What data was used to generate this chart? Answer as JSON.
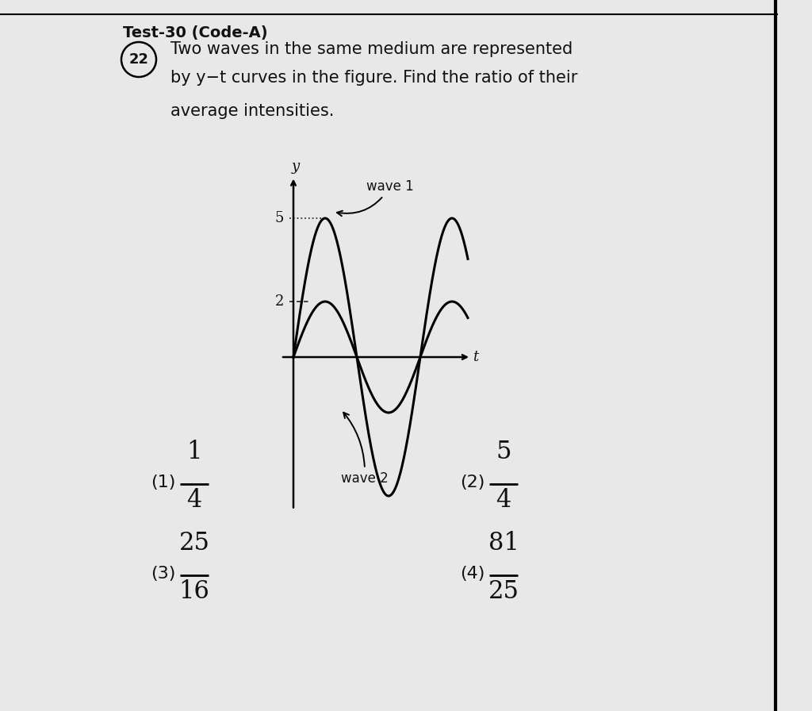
{
  "title": "Test-30 (Code-A)",
  "question_num": "22",
  "question_text_line1": "Two waves in the same medium are represented",
  "question_text_line2": "by y−t curves in the figure. Find the ratio of their",
  "question_text_line3": "average intensities.",
  "wave1_amplitude": 5,
  "wave2_amplitude": 2,
  "wave_period": 4.0,
  "axis_xlabel": "t",
  "axis_ylabel": "y",
  "label_wave1": "wave 1",
  "label_wave2": "wave 2",
  "y_tick_5": "5",
  "y_tick_2": "2",
  "options": [
    {
      "num": "(1)",
      "numer": "1",
      "denom": "4"
    },
    {
      "num": "(2)",
      "numer": "5",
      "denom": "4"
    },
    {
      "num": "(3)",
      "numer": "25",
      "denom": "16"
    },
    {
      "num": "(4)",
      "numer": "81",
      "denom": "25"
    }
  ],
  "bg_color": "#e8e8e8",
  "text_color": "#111111",
  "line_color": "#000000",
  "dashed_color": "#333333",
  "fig_width": 10.24,
  "fig_height": 8.96
}
